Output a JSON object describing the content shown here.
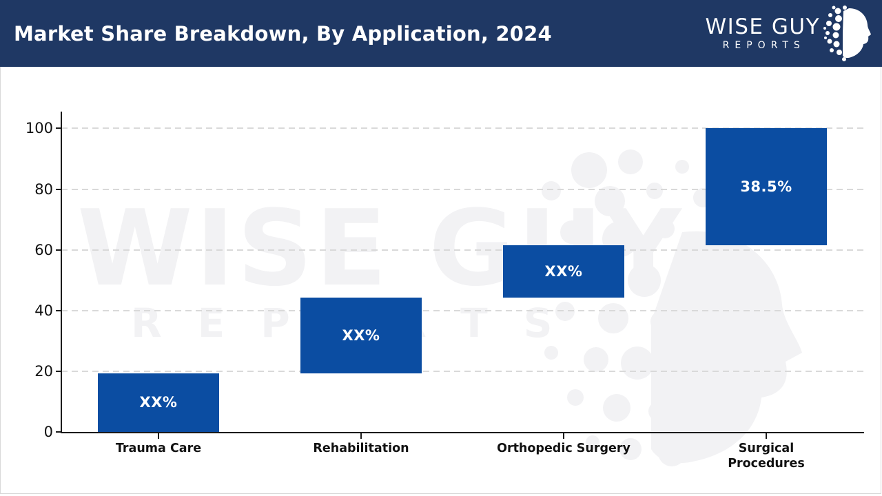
{
  "header": {
    "title": "Market Share Breakdown, By Application, 2024",
    "logo": {
      "wordmark": "WISE GUY",
      "subtext": "REPORTS"
    }
  },
  "watermark": {
    "line1": "WISE GUY",
    "line2": "REPORTS"
  },
  "chart_data": {
    "type": "bar",
    "subtype": "waterfall",
    "title": "Market Share Breakdown, By Application, 2024",
    "categories": [
      "Trauma Care",
      "Rehabilitation",
      "Orthopedic Surgery",
      "Surgical Procedures"
    ],
    "bars": [
      {
        "category": "Trauma Care",
        "category_lines": [
          "Trauma Care"
        ],
        "start": 0,
        "value": 19.4,
        "end": 19.4,
        "label": "XX%"
      },
      {
        "category": "Rehabilitation",
        "category_lines": [
          "Rehabilitation"
        ],
        "start": 19.4,
        "value": 24.8,
        "end": 44.2,
        "label": "XX%"
      },
      {
        "category": "Orthopedic Surgery",
        "category_lines": [
          "Orthopedic Surgery"
        ],
        "start": 44.2,
        "value": 17.3,
        "end": 61.5,
        "label": "XX%"
      },
      {
        "category": "Surgical Procedures",
        "category_lines": [
          "Surgical",
          "Procedures"
        ],
        "start": 61.5,
        "value": 38.5,
        "end": 100.0,
        "label": "38.5%"
      }
    ],
    "xlabel": "",
    "ylabel": "",
    "y_ticks": [
      "0",
      "20",
      "40",
      "60",
      "80",
      "100"
    ],
    "ylim": [
      0,
      100
    ],
    "grid": "horizontal-dashed",
    "legend": "none",
    "colors": {
      "bar": "#0b4da2",
      "bar_label": "#ffffff",
      "axis": "#1a1a1a",
      "tick_text": "#111111",
      "gridline": "#d9d9d9",
      "header_bg": "#1f3864",
      "header_text": "#ffffff",
      "watermark": "#f2f2f4",
      "panel_border": "#d9d9d9"
    }
  }
}
